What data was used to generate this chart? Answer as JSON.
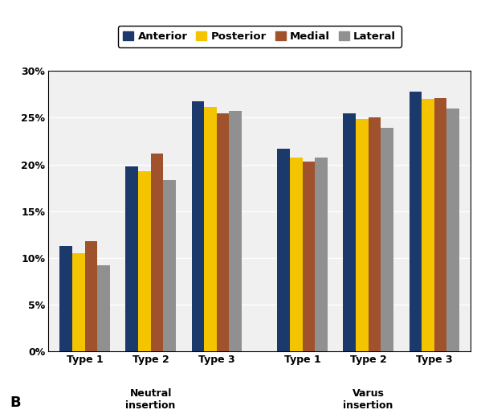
{
  "group_labels_bottom": [
    "Type 1",
    "Type 2",
    "Type 3",
    "Type 1",
    "Type 2",
    "Type 3"
  ],
  "section_labels": [
    "Neutral\ninsertion",
    "Varus\ninsertion"
  ],
  "series": {
    "Anterior": [
      11.3,
      19.8,
      26.8,
      21.7,
      25.5,
      27.8
    ],
    "Posterior": [
      10.5,
      19.3,
      26.2,
      20.7,
      24.9,
      27.0
    ],
    "Medial": [
      11.8,
      21.2,
      25.5,
      20.3,
      25.0,
      27.1
    ],
    "Lateral": [
      9.2,
      18.3,
      25.7,
      20.7,
      23.9,
      26.0
    ]
  },
  "colors": {
    "Anterior": "#1B3A6B",
    "Posterior": "#F5C400",
    "Medial": "#A0522D",
    "Lateral": "#909090"
  },
  "ylim": [
    0,
    30
  ],
  "yticks": [
    0,
    5,
    10,
    15,
    20,
    25,
    30
  ],
  "ytick_labels": [
    "0%",
    "5%",
    "10%",
    "15%",
    "20%",
    "25%",
    "30%"
  ],
  "background_color": "#FFFFFF",
  "plot_bg_color": "#F0F0F0",
  "grid_color": "#FFFFFF",
  "label_B": "B",
  "bar_width": 0.19
}
